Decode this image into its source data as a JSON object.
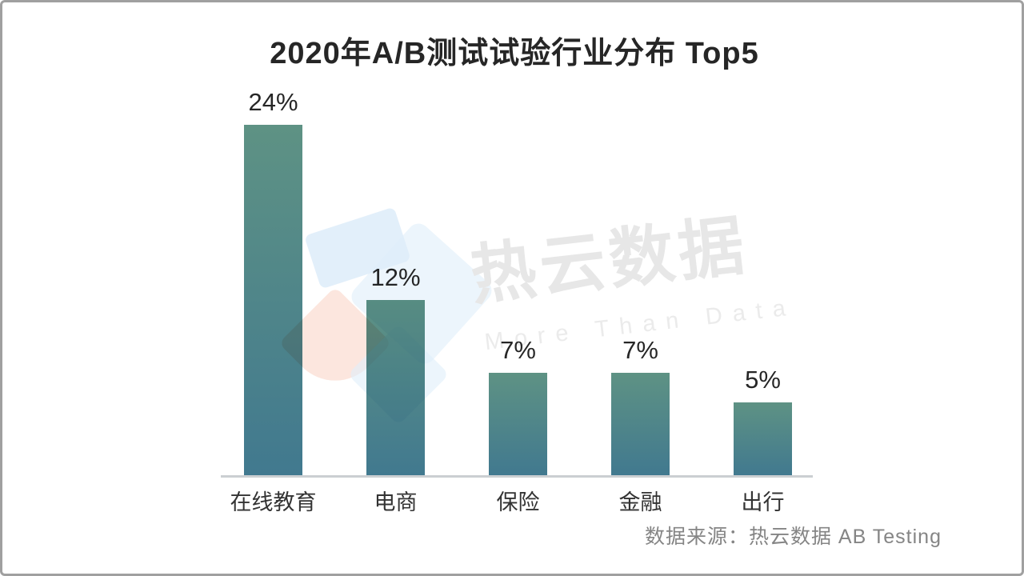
{
  "chart_data": {
    "type": "bar",
    "title": "2020年A/B测试试验行业分布 Top5",
    "categories": [
      "在线教育",
      "电商",
      "保险",
      "金融",
      "出行"
    ],
    "values": [
      24,
      12,
      7,
      7,
      5
    ],
    "value_labels": [
      "24%",
      "12%",
      "7%",
      "7%",
      "5%"
    ],
    "xlabel": "",
    "ylabel": "",
    "ylim": [
      0,
      24
    ],
    "grid": false,
    "legend": "none",
    "bar_color_top": "#5E9284",
    "bar_color_bottom": "#41798F",
    "axis_line_color": "#CBCFD2",
    "value_label_color": "#262626",
    "category_label_color": "#333333",
    "source_note": "数据来源：热云数据 AB Testing"
  },
  "watermark": {
    "brand_text": "热云数据",
    "tagline": "More Than Data",
    "text_color": "#E7E7E7",
    "tagline_color": "#EBEBEB",
    "logo_colors": {
      "blue": "rgba(203, 226, 246, 0.55)",
      "light_blue": "rgba(224, 238, 250, 0.6)",
      "pink": "rgba(250, 205, 190, 0.5)"
    }
  },
  "frame": {
    "background": "#FFFFFF",
    "border_color": "#A0A0A0"
  }
}
